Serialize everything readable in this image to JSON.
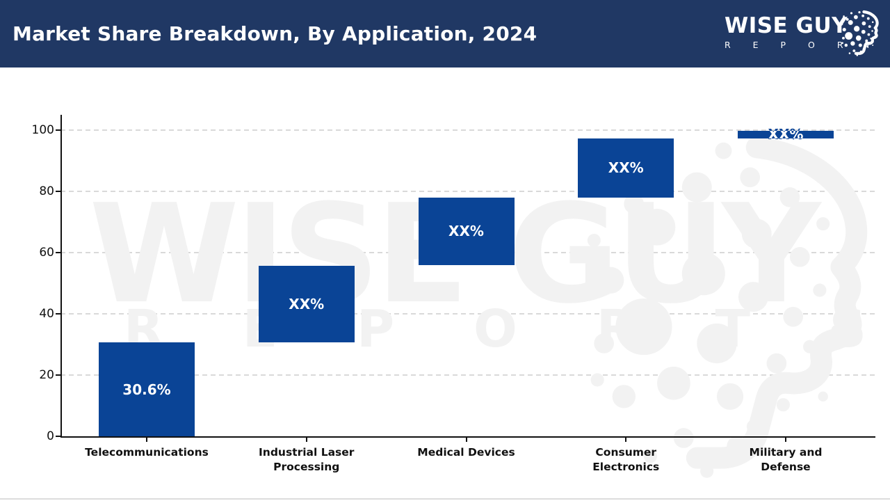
{
  "header": {
    "title": "Market Share Breakdown, By Application, 2024",
    "logo": {
      "wordmark": "WISE GUY",
      "sub": "R E P O R T S",
      "face_icon": "dotted-head-profile"
    }
  },
  "watermark": {
    "line1": "WISE GUY",
    "line2": "R E P O R T S",
    "face_icon": "dotted-head-profile"
  },
  "chart_data": {
    "type": "bar",
    "subtype": "waterfall",
    "title": "Market Share Breakdown, By Application, 2024",
    "xlabel": "",
    "ylabel": "",
    "ylim": [
      0,
      105
    ],
    "yticks": [
      0,
      20,
      40,
      60,
      80,
      100
    ],
    "grid": "horizontal dashed",
    "legend": "none",
    "categories": [
      {
        "label": "Telecommunications",
        "lines": [
          "Telecommunications"
        ]
      },
      {
        "label": "Industrial Laser Processing",
        "lines": [
          "Industrial Laser",
          "Processing"
        ]
      },
      {
        "label": "Medical Devices",
        "lines": [
          "Medical Devices"
        ]
      },
      {
        "label": "Consumer Electronics",
        "lines": [
          "Consumer",
          "Electronics"
        ]
      },
      {
        "label": "Military and Defense",
        "lines": [
          "Military and",
          "Defense"
        ]
      }
    ],
    "segments": [
      {
        "category": "Telecommunications",
        "start": 0,
        "end": 30.6,
        "label": "30.6%"
      },
      {
        "category": "Industrial Laser Processing",
        "start": 30.7,
        "end": 55.7,
        "label": "XX%"
      },
      {
        "category": "Medical Devices",
        "start": 55.9,
        "end": 78.0,
        "label": "XX%"
      },
      {
        "category": "Consumer Electronics",
        "start": 78.0,
        "end": 97.3,
        "label": "XX%"
      },
      {
        "category": "Military and Defense",
        "start": 97.3,
        "end": 99.8,
        "label": "XX%"
      }
    ]
  },
  "colors": {
    "header_bg": "#203864",
    "bar": "#0a4496",
    "axis": "#111111",
    "grid": "#d9d9d9",
    "watermark": "#f2f2f2",
    "page_bg": "#ffffff",
    "title_text": "#ffffff",
    "hairline": "#dcdcdc"
  }
}
